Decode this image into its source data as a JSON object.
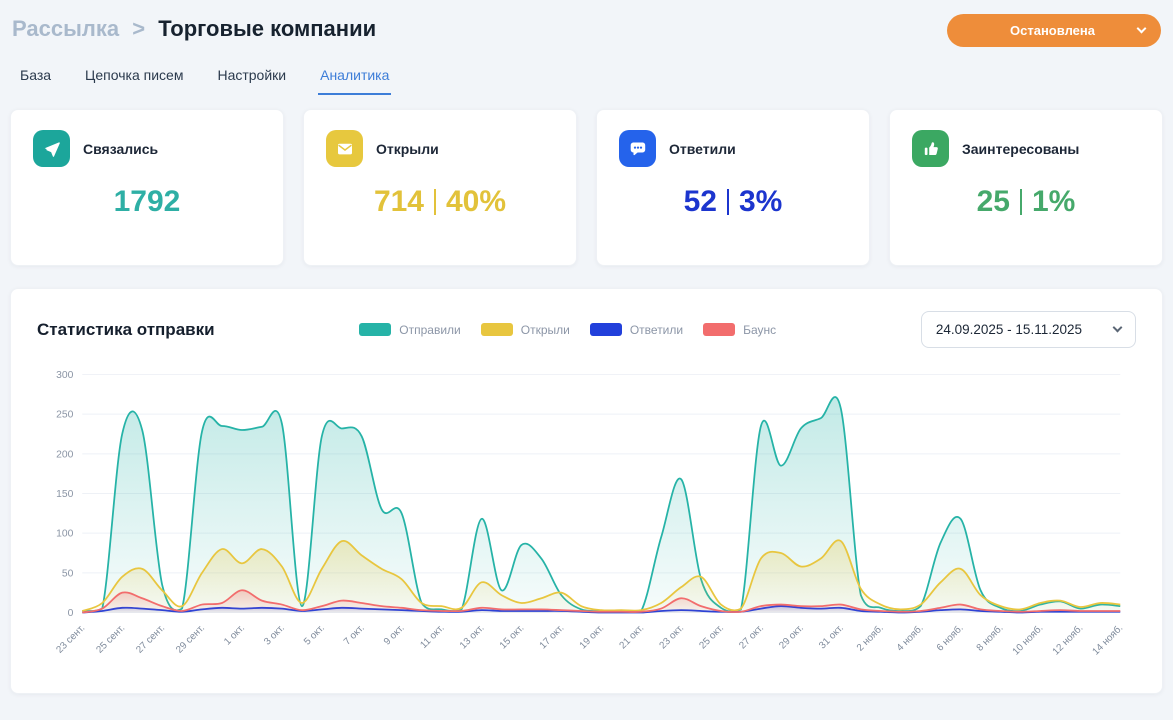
{
  "breadcrumb": {
    "parent": "Рассылка",
    "separator": ">",
    "current": "Торговые компании"
  },
  "status_button": {
    "label": "Остановлена",
    "color": "#EE8D3A"
  },
  "tabs": [
    {
      "label": "База",
      "active": false
    },
    {
      "label": "Цепочка писем",
      "active": false
    },
    {
      "label": "Настройки",
      "active": false
    },
    {
      "label": "Аналитика",
      "active": true
    }
  ],
  "stat_cards": [
    {
      "label": "Связались",
      "value": "1792",
      "color": "#2EAFA5",
      "icon_bg": "#1CA69B",
      "icon": "send-icon"
    },
    {
      "label": "Открыли",
      "value": "714",
      "percent": "40%",
      "color": "#E2C23A",
      "icon_bg": "#E7C83E",
      "icon": "envelope-icon"
    },
    {
      "label": "Ответили",
      "value": "52",
      "percent": "3%",
      "color": "#1C35CE",
      "icon_bg": "#2563EB",
      "icon": "chat-icon"
    },
    {
      "label": "Заинтересованы",
      "value": "25",
      "percent": "1%",
      "color": "#46A96B",
      "icon_bg": "#3BA862",
      "icon": "thumbs-up-icon"
    }
  ],
  "chart_section": {
    "title": "Статистика отправки",
    "date_range": "24.09.2025 - 15.11.2025"
  },
  "chart_data": {
    "type": "area",
    "title": "Статистика отправки",
    "grid": true,
    "legend_position": "top-center",
    "ylim": [
      0,
      300
    ],
    "yticks": [
      0,
      50,
      100,
      150,
      200,
      250,
      300
    ],
    "tick_every": 2,
    "x_tick_labels": [
      "23 сент.",
      "25 сент.",
      "27 сент.",
      "29 сент.",
      "1 окт.",
      "3 окт.",
      "5 окт.",
      "7 окт.",
      "9 окт.",
      "11 окт.",
      "13 окт.",
      "15 окт.",
      "17 окт.",
      "19 окт.",
      "21 окт.",
      "23 окт.",
      "25 окт.",
      "27 окт.",
      "29 окт.",
      "31 окт.",
      "2 нояб.",
      "4 нояб.",
      "6 нояб.",
      "8 нояб.",
      "10 нояб.",
      "12 нояб.",
      "14 нояб."
    ],
    "series": [
      {
        "name": "Отправили",
        "color": "#26B3A7",
        "fill_opacity": 0.28,
        "values": [
          2,
          5,
          225,
          230,
          35,
          5,
          228,
          235,
          230,
          234,
          238,
          8,
          222,
          232,
          222,
          130,
          125,
          12,
          4,
          4,
          118,
          28,
          85,
          68,
          22,
          4,
          2,
          2,
          2,
          95,
          168,
          42,
          6,
          4,
          235,
          185,
          232,
          245,
          257,
          22,
          6,
          2,
          8,
          88,
          118,
          28,
          6,
          2,
          10,
          14,
          5,
          10,
          8
        ]
      },
      {
        "name": "Открыли",
        "color": "#E8C63F",
        "fill_opacity": 0.3,
        "values": [
          2,
          12,
          45,
          55,
          28,
          8,
          50,
          80,
          62,
          80,
          58,
          12,
          55,
          90,
          72,
          55,
          42,
          12,
          8,
          6,
          38,
          22,
          12,
          18,
          25,
          8,
          3,
          3,
          3,
          12,
          32,
          45,
          10,
          5,
          68,
          75,
          58,
          68,
          90,
          30,
          10,
          4,
          10,
          38,
          55,
          22,
          8,
          4,
          12,
          15,
          7,
          12,
          10
        ]
      },
      {
        "name": "Ответили",
        "color": "#2240DB",
        "fill_opacity": 0.25,
        "values": [
          0,
          2,
          6,
          5,
          3,
          1,
          4,
          6,
          5,
          6,
          5,
          2,
          4,
          6,
          5,
          4,
          3,
          2,
          1,
          1,
          3,
          2,
          2,
          2,
          2,
          1,
          0,
          0,
          0,
          2,
          3,
          2,
          1,
          1,
          5,
          8,
          6,
          5,
          6,
          2,
          1,
          0,
          1,
          3,
          4,
          2,
          1,
          0,
          1,
          1,
          1,
          1,
          1
        ]
      },
      {
        "name": "Баунс",
        "color": "#F26D6D",
        "fill_opacity": 0.3,
        "values": [
          0,
          5,
          25,
          18,
          8,
          2,
          10,
          12,
          28,
          15,
          10,
          3,
          8,
          15,
          12,
          8,
          6,
          3,
          2,
          2,
          6,
          4,
          4,
          4,
          3,
          2,
          1,
          1,
          1,
          5,
          18,
          8,
          2,
          1,
          8,
          10,
          8,
          8,
          10,
          4,
          2,
          1,
          2,
          6,
          10,
          4,
          2,
          1,
          2,
          3,
          2,
          2,
          2
        ]
      }
    ]
  }
}
